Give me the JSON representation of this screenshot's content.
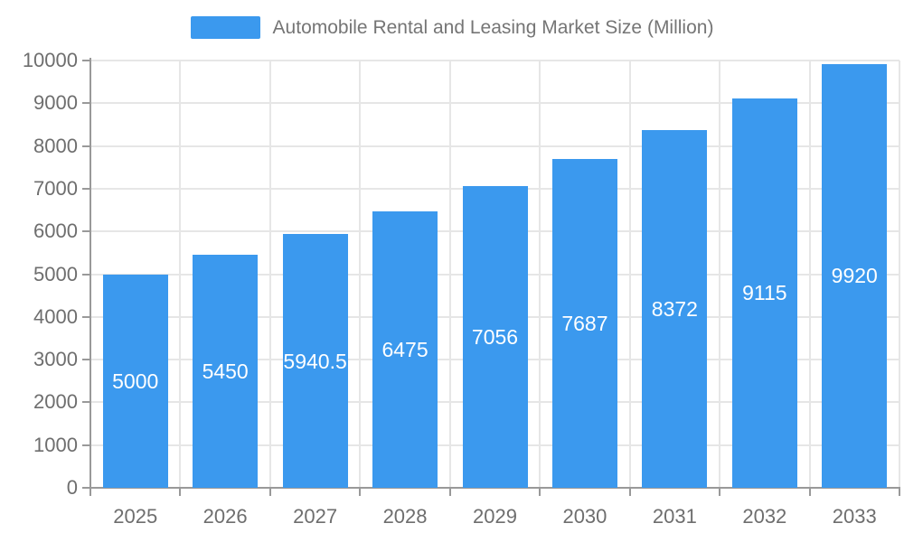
{
  "chart_data": {
    "type": "bar",
    "title": "Automobile Rental and Leasing Market Size (Million)",
    "categories": [
      "2025",
      "2026",
      "2027",
      "2028",
      "2029",
      "2030",
      "2031",
      "2032",
      "2033"
    ],
    "values": [
      5000,
      5450,
      5940.5,
      6475,
      7056,
      7687,
      8372,
      9115,
      9920
    ],
    "xlabel": "",
    "ylabel": "",
    "ylim": [
      0,
      10000
    ],
    "yticks": [
      0,
      1000,
      2000,
      3000,
      4000,
      5000,
      6000,
      7000,
      8000,
      9000,
      10000
    ],
    "grid": true,
    "legend_position": "top",
    "bar_labels_inside": true,
    "colors": {
      "bar": "#3b99ee",
      "axis": "#999999",
      "gridline": "#e6e6e6",
      "tick_text": "#6e6e6e",
      "legend_text": "#757575",
      "bar_label_text": "#ffffff",
      "background": "#ffffff"
    }
  }
}
